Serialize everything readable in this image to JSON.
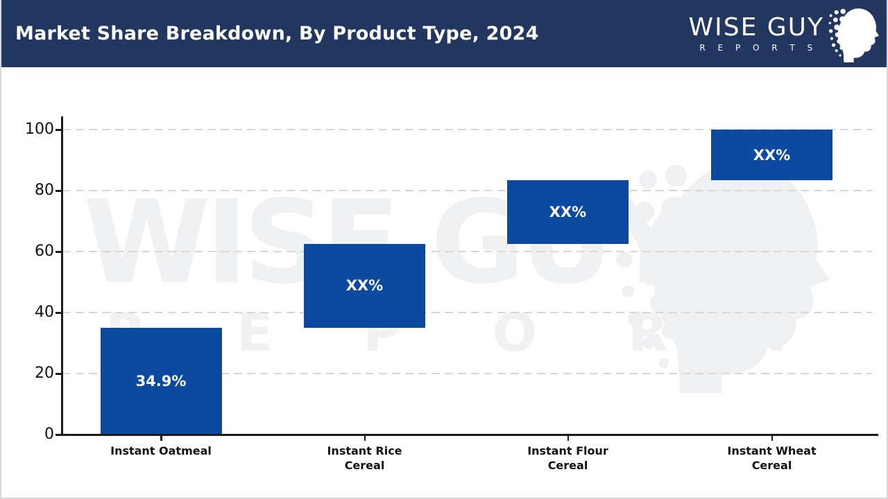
{
  "header": {
    "title": "Market Share Breakdown, By Product Type, 2024",
    "logo_line1": "WISE GUY",
    "logo_line2": "R E P O R T S",
    "bg_color": "#223660"
  },
  "watermark": {
    "line1": "WISE GUY",
    "line2": "R E P O R T S"
  },
  "chart_data": {
    "type": "bar",
    "subtype": "floating-stacked-percentage",
    "title": "Market Share Breakdown, By Product Type, 2024",
    "categories": [
      "Instant Oatmeal",
      "Instant Rice Cereal",
      "Instant Flour Cereal",
      "Instant Wheat Cereal"
    ],
    "category_lines": [
      [
        "Instant Oatmeal"
      ],
      [
        "Instant Rice",
        "Cereal"
      ],
      [
        "Instant Flour",
        "Cereal"
      ],
      [
        "Instant Wheat",
        "Cereal"
      ]
    ],
    "segments": [
      {
        "category": "Instant Oatmeal",
        "start": 0,
        "end": 34.9,
        "value": 34.9,
        "label": "34.9%"
      },
      {
        "category": "Instant Rice Cereal",
        "start": 34.9,
        "end": 62.6,
        "value": 27.7,
        "label": "XX%"
      },
      {
        "category": "Instant Flour Cereal",
        "start": 62.6,
        "end": 83.3,
        "value": 20.7,
        "label": "XX%"
      },
      {
        "category": "Instant Wheat Cereal",
        "start": 83.3,
        "end": 100,
        "value": 16.7,
        "label": "XX%"
      }
    ],
    "yticks": [
      0,
      20,
      40,
      60,
      80,
      100
    ],
    "ylim": [
      0,
      104
    ],
    "xlabel": "",
    "ylabel": "",
    "grid": true,
    "legend": false,
    "bar_color": "#0b4a9f",
    "bar_label_color": "#ffffff",
    "gridline_color": "#d8d8d8",
    "axis_color": "#1a1a1a"
  }
}
